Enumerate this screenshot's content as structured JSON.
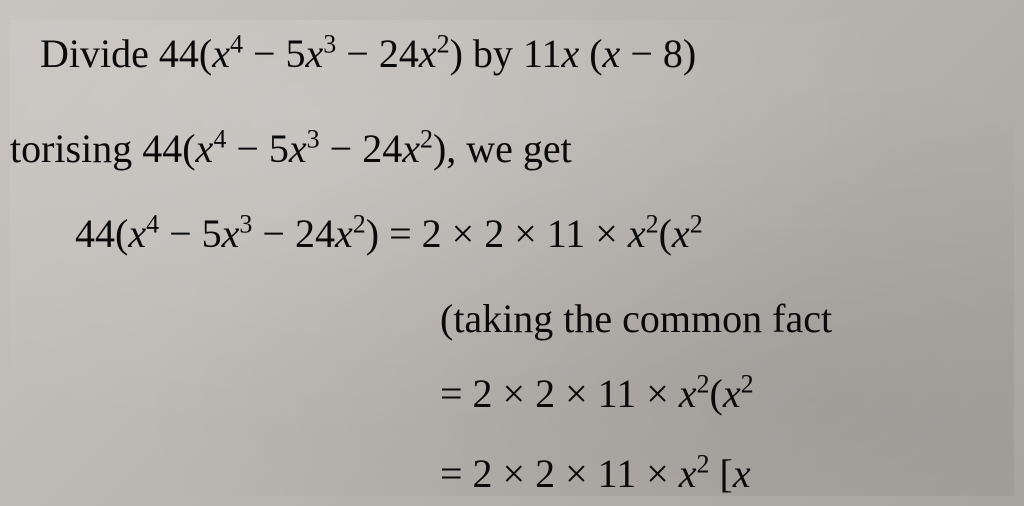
{
  "document": {
    "type": "textbook-math-excerpt",
    "background_color": "#b8b4b0",
    "text_color": "#0a0a0a",
    "font_family": "Georgia, Times New Roman, serif",
    "base_fontsize_pt": 30,
    "lines": {
      "l1_prefix": "Divide 44(",
      "l1_expr1_x4": "x",
      "l1_expr1_p4": "4",
      "l1_m1": " − 5",
      "l1_expr1_x3": "x",
      "l1_expr1_p3": "3",
      "l1_m2": " − 24",
      "l1_expr1_x2": "x",
      "l1_expr1_p2": "2",
      "l1_mid": ") by 11",
      "l1_x": "x",
      "l1_open": " (",
      "l1_xv": "x",
      "l1_end": " − 8)",
      "l2_prefix": "torising 44(",
      "l2_x4": "x",
      "l2_p4": "4",
      "l2_m1": " − 5",
      "l2_x3": "x",
      "l2_p3": "3",
      "l2_m2": " − 24",
      "l2_x2": "x",
      "l2_p2": "2",
      "l2_suffix": "), we get",
      "l3_prefix": "44(",
      "l3_x4": "x",
      "l3_p4": "4",
      "l3_m1": " − 5",
      "l3_x3": "x",
      "l3_p3": "3",
      "l3_m2": " − 24",
      "l3_x2": "x",
      "l3_p2": "2",
      "l3_eq": ") = 2 × 2 × 11 × ",
      "l3_xa": "x",
      "l3_pa": "2",
      "l3_op": "(",
      "l3_xb": "x",
      "l3_pb": "2",
      "l3_tail": " ",
      "l4_text": "(taking the common fact",
      "l5_eq": "= 2 × 2 × 11 × ",
      "l5_xa": "x",
      "l5_pa": "2",
      "l5_op": "(",
      "l5_xb": "x",
      "l5_pb": "2",
      "l6_eq": "= 2 × 2 × 11 × ",
      "l6_xa": "x",
      "l6_pa": "2",
      "l6_br": " [",
      "l6_xb": "x"
    }
  }
}
